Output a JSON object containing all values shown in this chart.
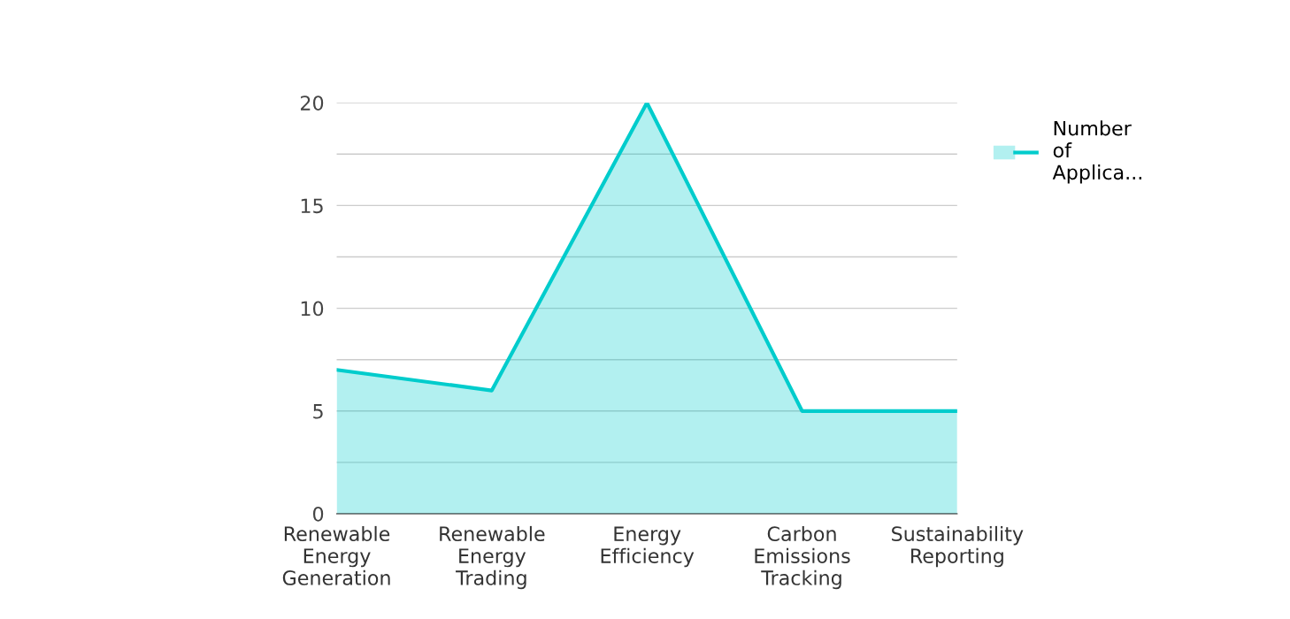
{
  "chart_data": {
    "type": "area",
    "categories": [
      "Renewable Energy Generation",
      "Renewable Energy Trading",
      "Energy Efficiency",
      "Carbon Emissions Tracking",
      "Sustainability Reporting"
    ],
    "series": [
      {
        "name": "Number of Applica...",
        "color": "#00cccc",
        "values": [
          7,
          6,
          20,
          5,
          5
        ]
      }
    ],
    "ylim": [
      0,
      20
    ],
    "yticks": [
      0,
      {
        "value": 2.5,
        "label": null
      },
      5,
      {
        "value": 7.5,
        "label": null
      },
      10,
      {
        "value": 12.5,
        "label": null
      },
      15,
      {
        "value": 17.5,
        "label": null
      },
      20
    ],
    "grid": "y",
    "legend": "top right"
  }
}
